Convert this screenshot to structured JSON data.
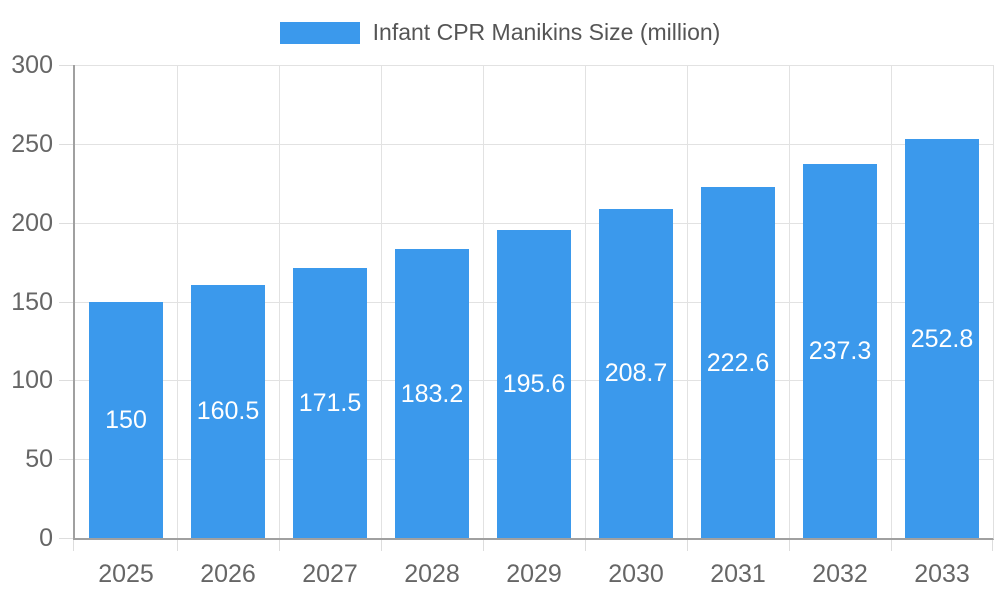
{
  "chart_data": {
    "type": "bar",
    "title": "Infant CPR Manikins Size (million)",
    "legend": [
      {
        "label": "Infant CPR Manikins Size (million)",
        "color": "#3B99EC"
      }
    ],
    "legend_position": "top-center",
    "categories": [
      "2025",
      "2026",
      "2027",
      "2028",
      "2029",
      "2030",
      "2031",
      "2032",
      "2033"
    ],
    "values": [
      150,
      160.5,
      171.5,
      183.2,
      195.6,
      208.7,
      222.6,
      237.3,
      252.8
    ],
    "value_labels": [
      "150",
      "160.5",
      "171.5",
      "183.2",
      "195.6",
      "208.7",
      "222.6",
      "237.3",
      "252.8"
    ],
    "xlabel": "",
    "ylabel": "",
    "ylim": [
      0,
      300
    ],
    "yticks": [
      0,
      50,
      100,
      150,
      200,
      250,
      300
    ],
    "ytick_labels": [
      "0",
      "50",
      "100",
      "150",
      "200",
      "250",
      "300"
    ],
    "grid": true,
    "bar_color": "#3B99EC",
    "value_label_color": "#ffffff",
    "axis_text_color": "#666666",
    "gridline_color": "#e2e2e2",
    "axis_line_color": "#a0a0a0"
  }
}
